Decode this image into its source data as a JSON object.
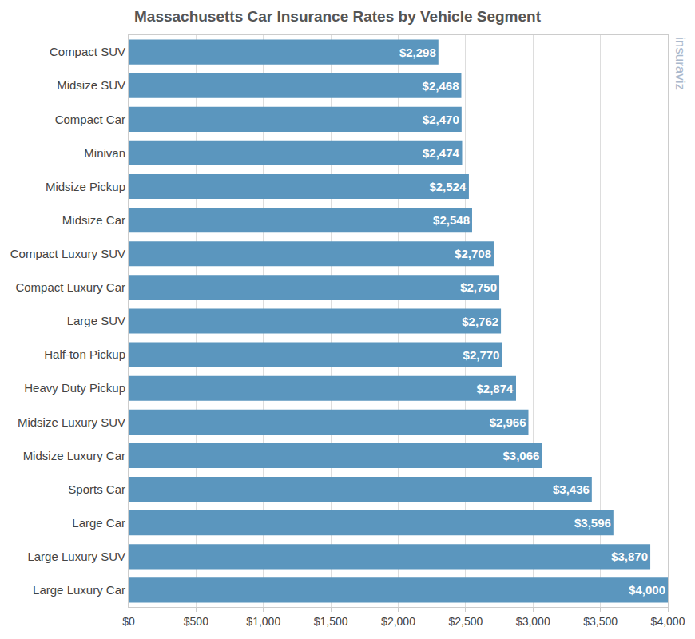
{
  "chart_data": {
    "type": "bar",
    "title": "Massachusetts Car Insurance Rates by Vehicle Segment",
    "orientation": "horizontal",
    "categories": [
      "Compact SUV",
      "Midsize SUV",
      "Compact Car",
      "Minivan",
      "Midsize Pickup",
      "Midsize Car",
      "Compact Luxury SUV",
      "Compact Luxury Car",
      "Large SUV",
      "Half-ton Pickup",
      "Heavy Duty Pickup",
      "Midsize Luxury SUV",
      "Midsize Luxury Car",
      "Sports Car",
      "Large Car",
      "Large Luxury SUV",
      "Large Luxury Car"
    ],
    "values": [
      2298,
      2468,
      2470,
      2474,
      2524,
      2548,
      2708,
      2750,
      2762,
      2770,
      2874,
      2966,
      3066,
      3436,
      3596,
      3870,
      4000
    ],
    "value_labels": [
      "$2,298",
      "$2,468",
      "$2,470",
      "$2,474",
      "$2,524",
      "$2,548",
      "$2,708",
      "$2,750",
      "$2,762",
      "$2,770",
      "$2,874",
      "$2,966",
      "$3,066",
      "$3,436",
      "$3,596",
      "$3,870",
      "$4,000"
    ],
    "data_labels": true,
    "color": "#5b96be",
    "xlim": [
      0,
      4000
    ],
    "xticks": [
      {
        "value": 0,
        "label": "$0"
      },
      {
        "value": 500,
        "label": "$500"
      },
      {
        "value": 1000,
        "label": "$1,000"
      },
      {
        "value": 1500,
        "label": "$1,500"
      },
      {
        "value": 2000,
        "label": "$2,000"
      },
      {
        "value": 2500,
        "label": "$2,500"
      },
      {
        "value": 3000,
        "label": "$3,000"
      },
      {
        "value": 3500,
        "label": "$3,500"
      },
      {
        "value": 4000,
        "label": "$4,000"
      }
    ],
    "grid": true,
    "annotations": [
      "insuraviz"
    ]
  }
}
